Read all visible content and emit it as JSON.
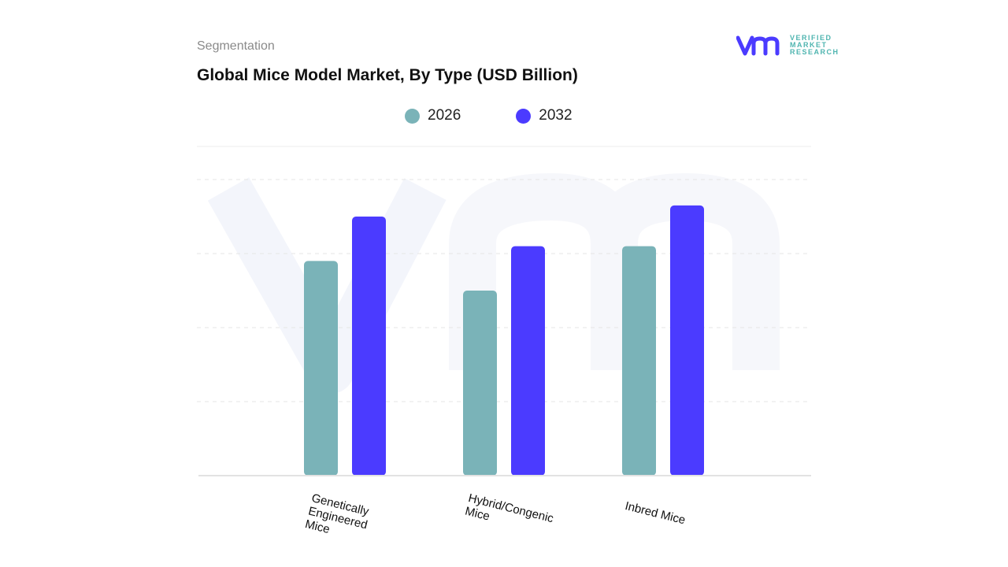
{
  "header": {
    "section": "Segmentation",
    "title": "Global Mice Model Market, By Type (USD Billion)"
  },
  "logo": {
    "text": [
      "VERIFIED",
      "MARKET",
      "RESEARCH"
    ]
  },
  "chart_data": {
    "type": "bar",
    "title": "Global Mice Model Market, By Type (USD Billion)",
    "categories": [
      "Genetically Engineered Mice",
      "Hybrid/Congenic Mice",
      "Inbred Mice"
    ],
    "series": [
      {
        "name": "2026",
        "color": "#7ab3b8",
        "values": [
          2.9,
          2.5,
          3.1
        ]
      },
      {
        "name": "2032",
        "color": "#4b3bff",
        "values": [
          3.5,
          3.1,
          3.65
        ]
      }
    ],
    "ylim": [
      0,
      4
    ],
    "grid": true,
    "legend": "top-center",
    "y_tick_labels_shown": false
  }
}
